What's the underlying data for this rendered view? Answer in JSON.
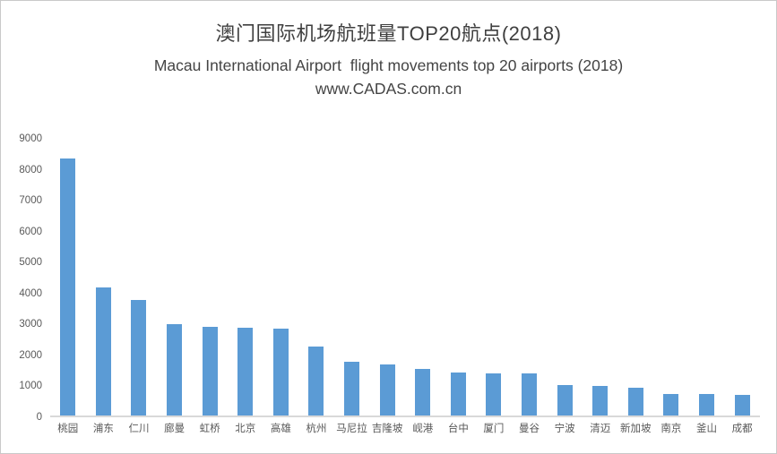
{
  "header": {
    "title": "澳门国际机场航班量TOP20航点(2018)",
    "subtitle": "Macau International Airport  flight movements top 20 airports (2018)",
    "website": "www.CADAS.com.cn"
  },
  "chart_data": {
    "type": "bar",
    "title": "澳门国际机场航班量TOP20航点(2018)",
    "subtitle": "Macau International Airport  flight movements top 20 airports (2018)",
    "source_line": "www.CADAS.com.cn",
    "categories": [
      "桃园",
      "浦东",
      "仁川",
      "廊曼",
      "虹桥",
      "北京",
      "高雄",
      "杭州",
      "马尼拉",
      "吉隆坡",
      "岘港",
      "台中",
      "厦门",
      "曼谷",
      "宁波",
      "清迈",
      "新加坡",
      "南京",
      "釜山",
      "成都"
    ],
    "values": [
      8300,
      4150,
      3740,
      2940,
      2860,
      2830,
      2810,
      2240,
      1730,
      1640,
      1500,
      1400,
      1360,
      1350,
      980,
      950,
      910,
      700,
      700,
      680
    ],
    "xlabel": "",
    "ylabel": "",
    "ylim": [
      0,
      9000
    ],
    "yticks": [
      0,
      1000,
      2000,
      3000,
      4000,
      5000,
      6000,
      7000,
      8000,
      9000
    ],
    "grid": false,
    "legend": "none",
    "bar_color": "#5b9bd5",
    "axis_line_color": "#d9d9d9",
    "tick_label_color": "#595959"
  }
}
